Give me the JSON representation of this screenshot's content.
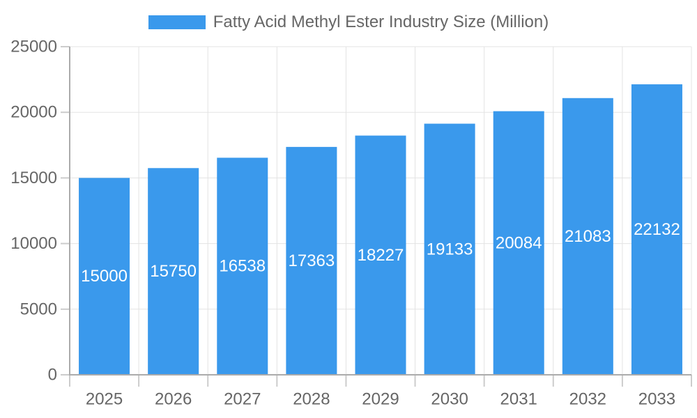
{
  "chart_data": {
    "type": "bar",
    "title": "Fatty Acid Methyl Ester Industry Size (Million)",
    "legend": {
      "position": "top",
      "entries": [
        "Fatty Acid Methyl Ester Industry Size (Million)"
      ]
    },
    "categories": [
      "2025",
      "2026",
      "2027",
      "2028",
      "2029",
      "2030",
      "2031",
      "2032",
      "2033"
    ],
    "series": [
      {
        "name": "Fatty Acid Methyl Ester Industry Size (Million)",
        "values": [
          15000,
          15750,
          16538,
          17363,
          18227,
          19133,
          20084,
          21083,
          22132
        ]
      }
    ],
    "bar_value_labels": [
      "15000",
      "15750",
      "16538",
      "17363",
      "18227",
      "19133",
      "20084",
      "21083",
      "22132"
    ],
    "xlabel": "",
    "ylabel": "",
    "ylim": [
      0,
      25000
    ],
    "yticks": [
      0,
      5000,
      10000,
      15000,
      20000,
      25000
    ],
    "ytick_labels": [
      "0",
      "5000",
      "10000",
      "15000",
      "20000",
      "25000"
    ],
    "grid": true,
    "colors": {
      "bar": "#3A99EC",
      "gridline": "#e3e3e3",
      "axis_line": "#ababab",
      "tick_mark": "#cccccc",
      "axis_text": "#666666",
      "bar_value_text": "#ffffff",
      "background": "#ffffff"
    }
  }
}
